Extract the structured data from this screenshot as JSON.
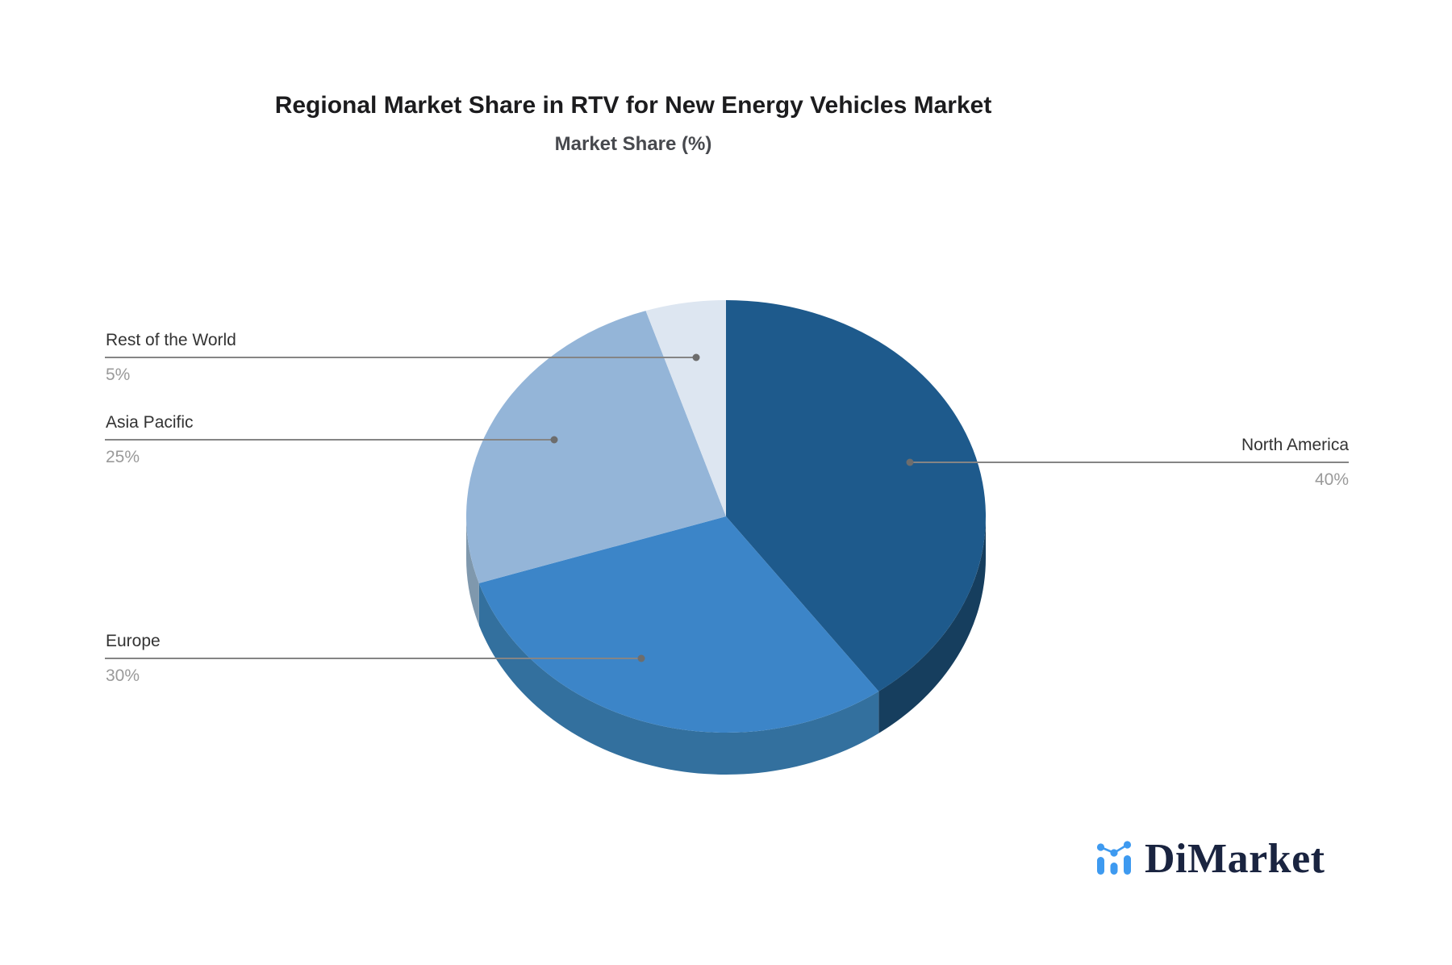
{
  "header": {
    "title": "Regional Market Share in RTV for New Energy Vehicles Market",
    "subtitle": "Market Share (%)"
  },
  "chart_data": {
    "type": "pie",
    "style": "3d",
    "title": "Regional Market Share in RTV for New Energy Vehicles Market",
    "subtitle": "Market Share (%)",
    "unit": "%",
    "direction": "clockwise",
    "start_angle_deg": 0,
    "categories": [
      "North America",
      "Europe",
      "Asia Pacific",
      "Rest of the World"
    ],
    "values": [
      40,
      30,
      25,
      5
    ],
    "display_labels": [
      "40%",
      "30%",
      "25%",
      "5%"
    ],
    "slice_colors": [
      "#1e5a8c",
      "#3c85c8",
      "#94b5d8",
      "#dde6f1"
    ],
    "slice_side_colors": [
      "#163e5e",
      "#33709e",
      "#7f98ad",
      "#c2cedd"
    ],
    "label_text_color": "#333333",
    "label_value_color": "#9a9a9a",
    "leader_line_color": "#858585",
    "leader_dot_color": "#6d6d6d",
    "legend_position": "none"
  },
  "branding": {
    "logo_text": "DiMarket",
    "logo_icon": "bar-line-chart-icon",
    "logo_text_color": "#1a2440",
    "logo_icon_color": "#3e9af0"
  }
}
